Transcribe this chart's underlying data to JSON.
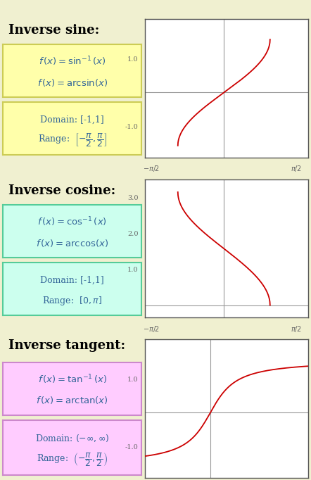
{
  "bg_color": "#f0f0d0",
  "title1": "Inverse sine:",
  "title2": "Inverse cosine:",
  "title3": "Inverse tangent:",
  "box1_color": "#ffffaa",
  "box1_border": "#cccc55",
  "box2_color": "#ccffee",
  "box2_border": "#55cc99",
  "box3_color": "#ffccff",
  "box3_border": "#cc88cc",
  "curve_color": "#cc0000",
  "axis_color": "#999999",
  "tick_color": "#666666",
  "title_color": "#000000",
  "text_color": "#336699",
  "formula1a": "$f\\,(x) = \\sin^{-1}(x)$",
  "formula1b": "$f\\,(x) = \\arcsin(x)$",
  "formula2a": "$f\\,(x) = \\cos^{-1}(x)$",
  "formula2b": "$f\\,(x) = \\arccos(x)$",
  "formula3a": "$f\\,(x) = \\tan^{-1}(x)$",
  "formula3b": "$f\\,(x) = \\arctan(x)$",
  "domain1": "Domain: [-1,1]",
  "range1": "Range:  $\\left[-\\dfrac{\\pi}{2},\\dfrac{\\pi}{2}\\right]$",
  "domain2": "Domain: [-1,1]",
  "range2": "Range:  $[0,\\pi]$",
  "domain3": "Domain: $(-\\infty, \\infty)$",
  "range3": "Range:  $\\left(-\\dfrac{\\pi}{2},\\dfrac{\\pi}{2}\\right)$"
}
